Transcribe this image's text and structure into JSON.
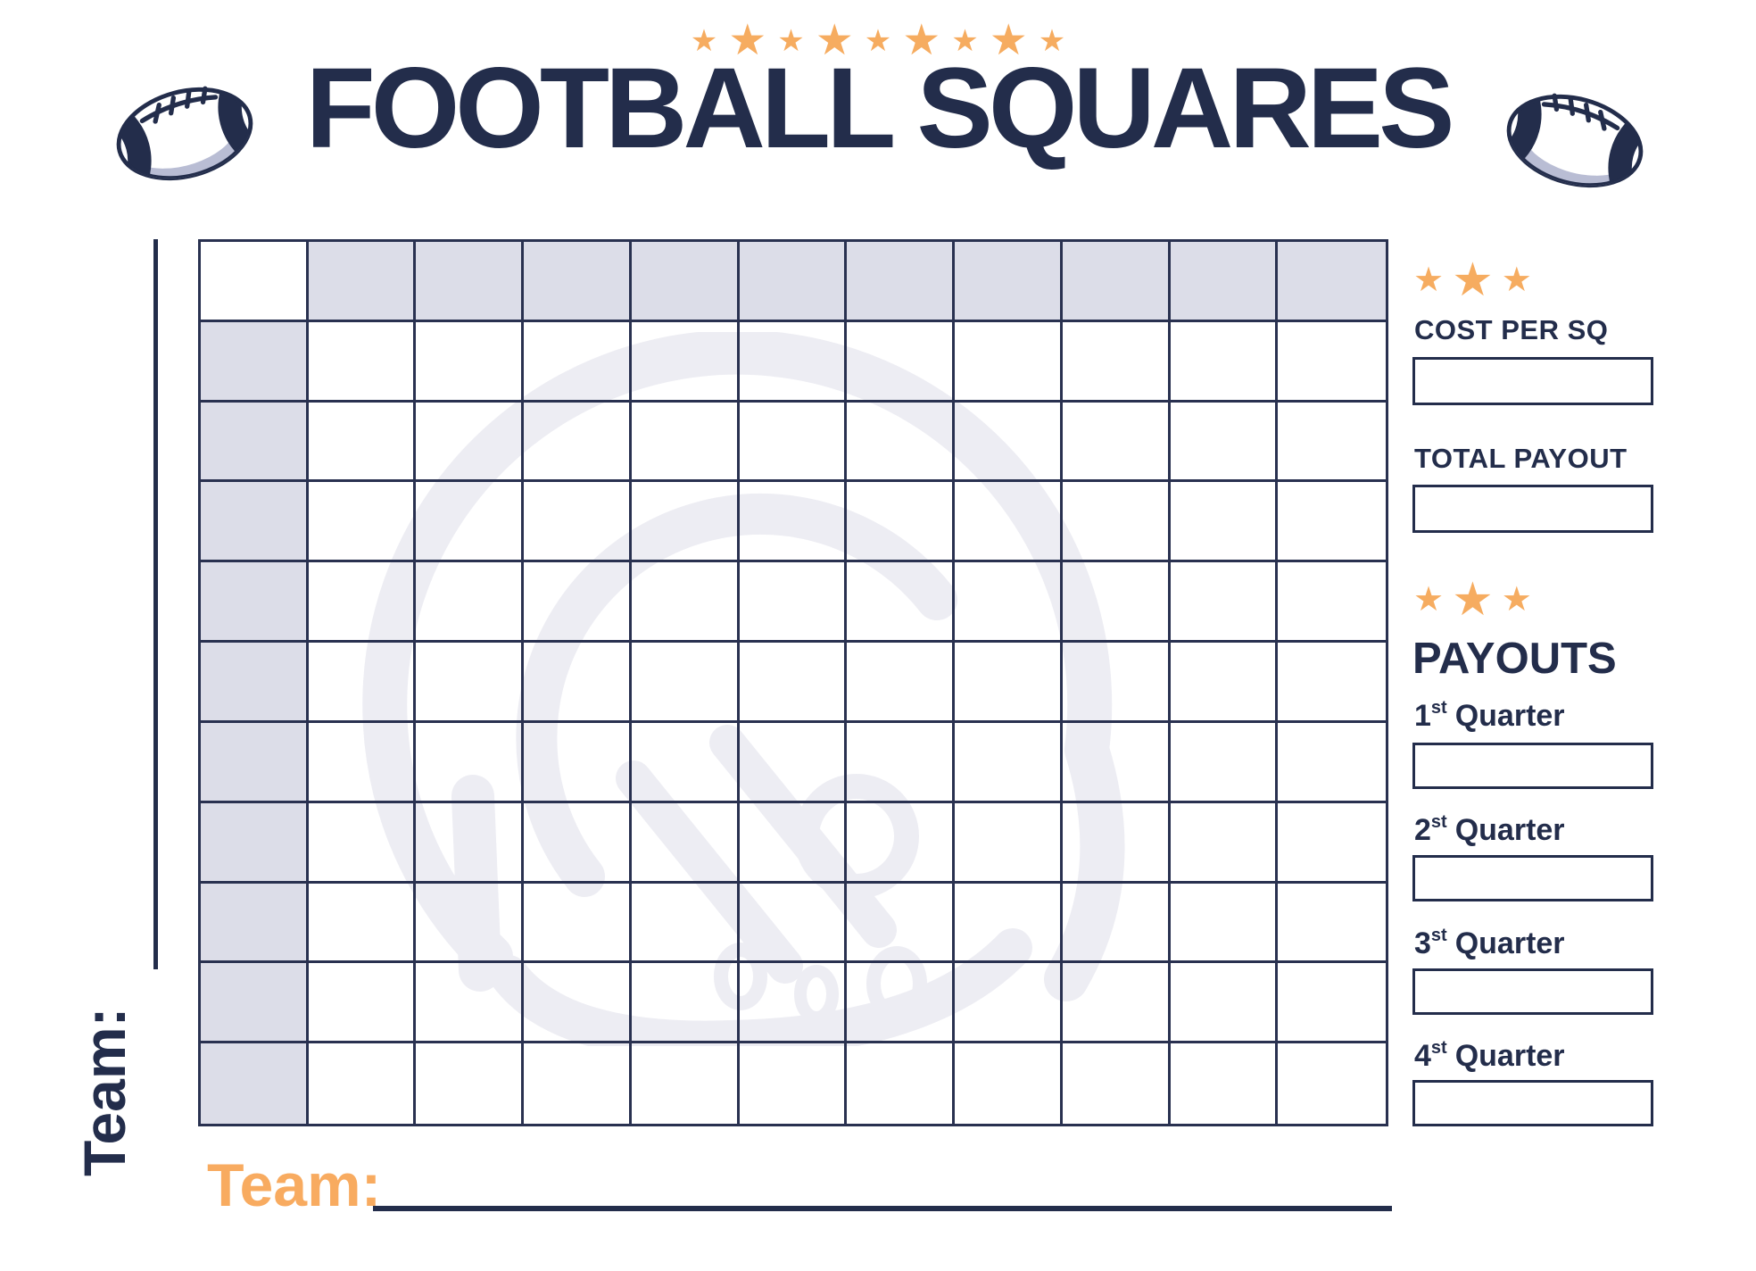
{
  "header": {
    "title": "FOOTBALL SQUARES",
    "star_glyph": "★",
    "top_star_count": 9
  },
  "team": {
    "side_label": "Team:",
    "bottom_label": "Team:"
  },
  "grid": {
    "rows": 11,
    "cols": 11,
    "note": "blank 10x10 squares pool with shaded number header row and column"
  },
  "sidebar": {
    "star_group_count": 3,
    "cost_per_sq_label": "COST PER SQ",
    "total_payout_label": "TOTAL PAYOUT",
    "payouts_title": "PAYOUTS",
    "quarters": [
      {
        "num": "1",
        "suffix": "st",
        "word": "Quarter"
      },
      {
        "num": "2",
        "suffix": "st",
        "word": "Quarter"
      },
      {
        "num": "3",
        "suffix": "st",
        "word": "Quarter"
      },
      {
        "num": "4",
        "suffix": "st",
        "word": "Quarter"
      }
    ],
    "inputs": {
      "cost_per_sq_value": "",
      "total_payout_value": "",
      "q1_value": "",
      "q2_value": "",
      "q3_value": "",
      "q4_value": ""
    }
  },
  "colors": {
    "navy": "#232D4B",
    "grid_line": "#293150",
    "orange": "#F6AC60",
    "shaded_cell": "#DCDDE8",
    "watermark": "#EDEDF3",
    "ball_shadow": "#B9BDD4"
  }
}
